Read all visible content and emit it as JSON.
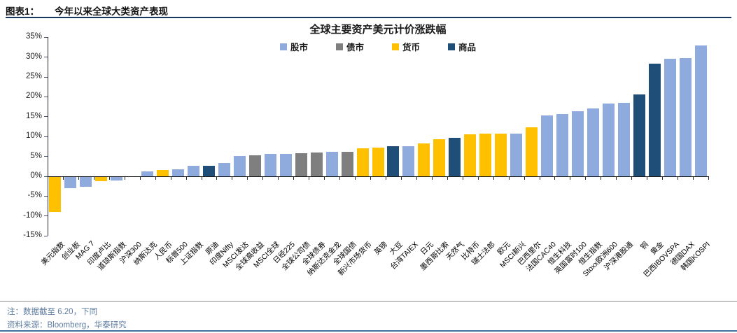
{
  "header": {
    "figure_label": "图表1：",
    "figure_title": "今年以来全球大类资产表现"
  },
  "footer": {
    "note": "注：数据截至 6.20，下同",
    "source": "资料来源：Bloomberg，华泰研究"
  },
  "colors": {
    "stocks": "#8FAADC",
    "bonds": "#7F7F7F",
    "currencies": "#FFC000",
    "commodities": "#1F4E79",
    "header_rule": "#17375E",
    "footer_rule": "#41719C",
    "footer_text": "#5E7CA0"
  },
  "chart_data": {
    "type": "bar",
    "title": "全球主要资产美元计价涨跌幅",
    "xlabel": "",
    "ylabel": "",
    "ylim": [
      -15,
      35
    ],
    "ytick_step": 5,
    "ytick_labels": [
      "35%",
      "30%",
      "25%",
      "20%",
      "15%",
      "10%",
      "5%",
      "0%",
      "-5%",
      "-10%",
      "-15%"
    ],
    "grid": false,
    "legend_position": "top-center",
    "legend": [
      {
        "label": "股市",
        "color": "#8FAADC"
      },
      {
        "label": "债市",
        "color": "#7F7F7F"
      },
      {
        "label": "货币",
        "color": "#FFC000"
      },
      {
        "label": "商品",
        "color": "#1F4E79"
      }
    ],
    "categories": [
      "美元指数",
      "创业板",
      "MAG 7",
      "印度卢比",
      "道琼斯指数",
      "沪深300",
      "纳斯达克",
      "人民币",
      "标普500",
      "上证指数",
      "原油",
      "印度Nifty",
      "MSCI发达",
      "全球高收益",
      "MSCI全球",
      "日经225",
      "全球公司债",
      "全球债券",
      "纳斯达克金龙",
      "全球国债",
      "新兴市场货币",
      "英镑",
      "大豆",
      "台湾TAIEX",
      "日元",
      "墨西哥比索",
      "天然气",
      "比特币",
      "瑞士法郎",
      "欧元",
      "MSCI新兴",
      "巴西里尔",
      "法国CAC40",
      "恒生科技",
      "英国富时100",
      "恒生指数",
      "Stoxx欧洲600",
      "沪深港股通",
      "铜",
      "黄金",
      "巴西IBOVSPA",
      "德国DAX",
      "韩国KOSPI"
    ],
    "groups": [
      "货币",
      "股市",
      "股市",
      "货币",
      "股市",
      "股市",
      "股市",
      "货币",
      "股市",
      "股市",
      "商品",
      "股市",
      "股市",
      "债市",
      "股市",
      "股市",
      "债市",
      "债市",
      "股市",
      "债市",
      "货币",
      "货币",
      "商品",
      "股市",
      "货币",
      "货币",
      "商品",
      "货币",
      "货币",
      "货币",
      "股市",
      "货币",
      "股市",
      "股市",
      "股市",
      "股市",
      "股市",
      "股市",
      "商品",
      "商品",
      "股市",
      "股市",
      "股市"
    ],
    "values": [
      -8.8,
      -2.9,
      -2.5,
      -1.1,
      -0.9,
      0.0,
      1.2,
      1.6,
      1.8,
      2.6,
      2.7,
      3.4,
      5.1,
      5.2,
      5.7,
      5.7,
      5.8,
      6.0,
      6.2,
      6.2,
      7.1,
      7.3,
      7.6,
      7.6,
      8.3,
      9.4,
      9.6,
      10.6,
      10.7,
      10.8,
      10.8,
      12.3,
      15.3,
      15.6,
      16.4,
      17.1,
      18.3,
      18.4,
      20.6,
      28.4,
      29.5,
      29.8,
      32.9
    ]
  }
}
